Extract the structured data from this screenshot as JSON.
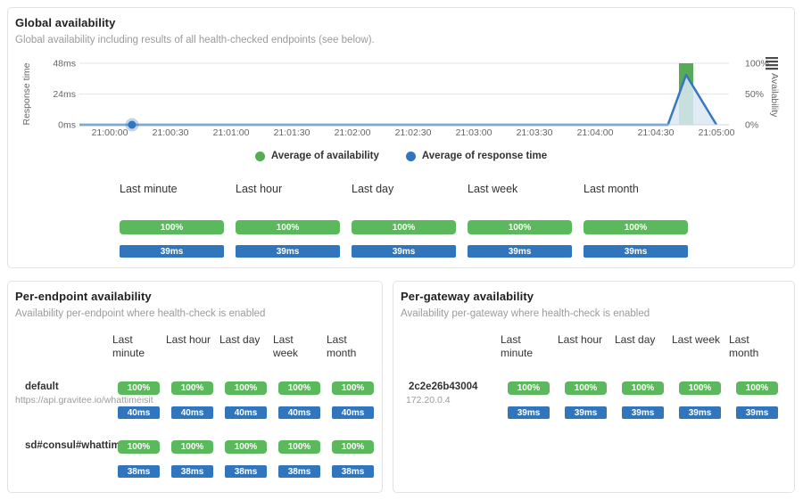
{
  "global_panel": {
    "title": "Global availability",
    "subtitle": "Global availability including results of all health-checked endpoints (see below).",
    "legend": [
      {
        "label": "Average of availability",
        "color": "#57ab57"
      },
      {
        "label": "Average of response time",
        "color": "#3176bd"
      }
    ],
    "stats": [
      {
        "label": "Last minute",
        "availability": "100%",
        "response_time": "39ms"
      },
      {
        "label": "Last hour",
        "availability": "100%",
        "response_time": "39ms"
      },
      {
        "label": "Last day",
        "availability": "100%",
        "response_time": "39ms"
      },
      {
        "label": "Last week",
        "availability": "100%",
        "response_time": "39ms"
      },
      {
        "label": "Last month",
        "availability": "100%",
        "response_time": "39ms"
      }
    ]
  },
  "chart_data": {
    "type": "line",
    "title": "",
    "x_tick_labels": [
      "21:00:00",
      "21:00:30",
      "21:01:00",
      "21:01:30",
      "21:02:00",
      "21:02:30",
      "21:03:00",
      "21:03:30",
      "21:04:00",
      "21:04:30",
      "21:05:00"
    ],
    "x_tick_interval_seconds": 30,
    "y_axis_left": {
      "title": "Response time",
      "ticks": [
        "0ms",
        "24ms",
        "48ms"
      ],
      "max": 48
    },
    "y_axis_right": {
      "title": "Availability",
      "ticks": [
        "0%",
        "50%",
        "100%"
      ],
      "max": 100
    },
    "grid": "horizontal-only",
    "legend_position": "bottom",
    "series": [
      {
        "name": "Average of availability",
        "type": "column",
        "color": "#57ab57",
        "points": [
          {
            "time": "21:04:45",
            "t_offset_s": 285,
            "value_pct": 100
          }
        ]
      },
      {
        "name": "Average of response time",
        "type": "area-line",
        "color": "#3778bf",
        "points": [
          {
            "t_offset_s": -15,
            "ms": 0
          },
          {
            "t_offset_s": 11,
            "ms": 0,
            "marker": true
          },
          {
            "t_offset_s": 276,
            "ms": 0
          },
          {
            "t_offset_s": 285,
            "ms": 39
          },
          {
            "t_offset_s": 300,
            "ms": 0
          }
        ]
      }
    ]
  },
  "endpoint_panel": {
    "title": "Per-endpoint availability",
    "subtitle": "Availability per-endpoint where health-check is enabled",
    "columns": [
      "Last minute",
      "Last hour",
      "Last day",
      "Last week",
      "Last month"
    ],
    "rows": [
      {
        "name": "default",
        "subtitle": "https://api.gravitee.io/whattimeisit",
        "availability": [
          "100%",
          "100%",
          "100%",
          "100%",
          "100%"
        ],
        "response_times": [
          "40ms",
          "40ms",
          "40ms",
          "40ms",
          "40ms"
        ]
      },
      {
        "name": "sd#consul#whattimeisit",
        "subtitle": "",
        "availability": [
          "100%",
          "100%",
          "100%",
          "100%",
          "100%"
        ],
        "response_times": [
          "38ms",
          "38ms",
          "38ms",
          "38ms",
          "38ms"
        ]
      }
    ]
  },
  "gateway_panel": {
    "title": "Per-gateway availability",
    "subtitle": "Availability per-gateway where health-check is enabled",
    "columns": [
      "Last minute",
      "Last hour",
      "Last day",
      "Last week",
      "Last month"
    ],
    "rows": [
      {
        "name": "2c2e26b43004",
        "subtitle": "172.20.0.4",
        "availability": [
          "100%",
          "100%",
          "100%",
          "100%",
          "100%"
        ],
        "response_times": [
          "39ms",
          "39ms",
          "39ms",
          "39ms",
          "39ms"
        ]
      }
    ]
  },
  "colors": {
    "availability_green": "#5cb85c",
    "response_blue": "#3176bd",
    "chart_line": "#3778bf",
    "chart_area_fill": "#dbe7f4",
    "chart_column_green": "#57ab57",
    "grid_line": "#e6e6e6",
    "axis_line": "#ccd6eb",
    "axis_text": "#666666"
  }
}
